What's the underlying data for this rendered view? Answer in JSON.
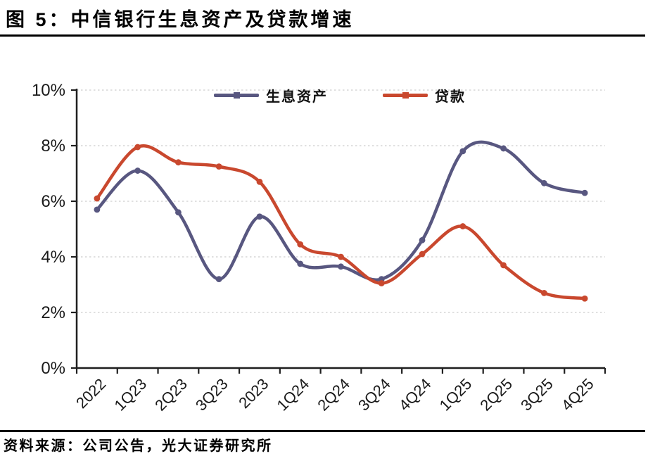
{
  "figure": {
    "title": "图 5：中信银行生息资产及贷款增速",
    "source": "资料来源：公司公告，光大证券研究所"
  },
  "chart_data": {
    "type": "line",
    "title": "中信银行生息资产及贷款增速",
    "categories": [
      "2022",
      "1Q23",
      "2Q23",
      "3Q23",
      "2023",
      "1Q24",
      "2Q24",
      "3Q24",
      "4Q24",
      "1Q25",
      "2Q25",
      "3Q25",
      "4Q25"
    ],
    "series": [
      {
        "name": "生息资产",
        "color": "#585780",
        "values": [
          5.7,
          7.1,
          5.6,
          3.2,
          5.45,
          3.75,
          3.65,
          3.2,
          4.6,
          7.8,
          7.9,
          6.65,
          6.3
        ]
      },
      {
        "name": "贷款",
        "color": "#C9482E",
        "values": [
          6.1,
          7.95,
          7.4,
          7.25,
          6.7,
          4.45,
          4.0,
          3.05,
          4.1,
          5.1,
          3.7,
          2.7,
          2.5
        ]
      }
    ],
    "xlabel": "",
    "ylabel": "",
    "ylim": [
      0,
      10
    ],
    "yticks": [
      0,
      2,
      4,
      6,
      8,
      10
    ],
    "ytick_format": "{v}%",
    "grid": "dotted-horizontal",
    "legend_position": "top-center",
    "smooth": true,
    "markers": true,
    "x_label_rotation": -45
  },
  "style": {
    "grid_color": "#d6d6d6",
    "axis_color": "#1f1f1f",
    "tick_label_color": "#1a1a1a"
  }
}
